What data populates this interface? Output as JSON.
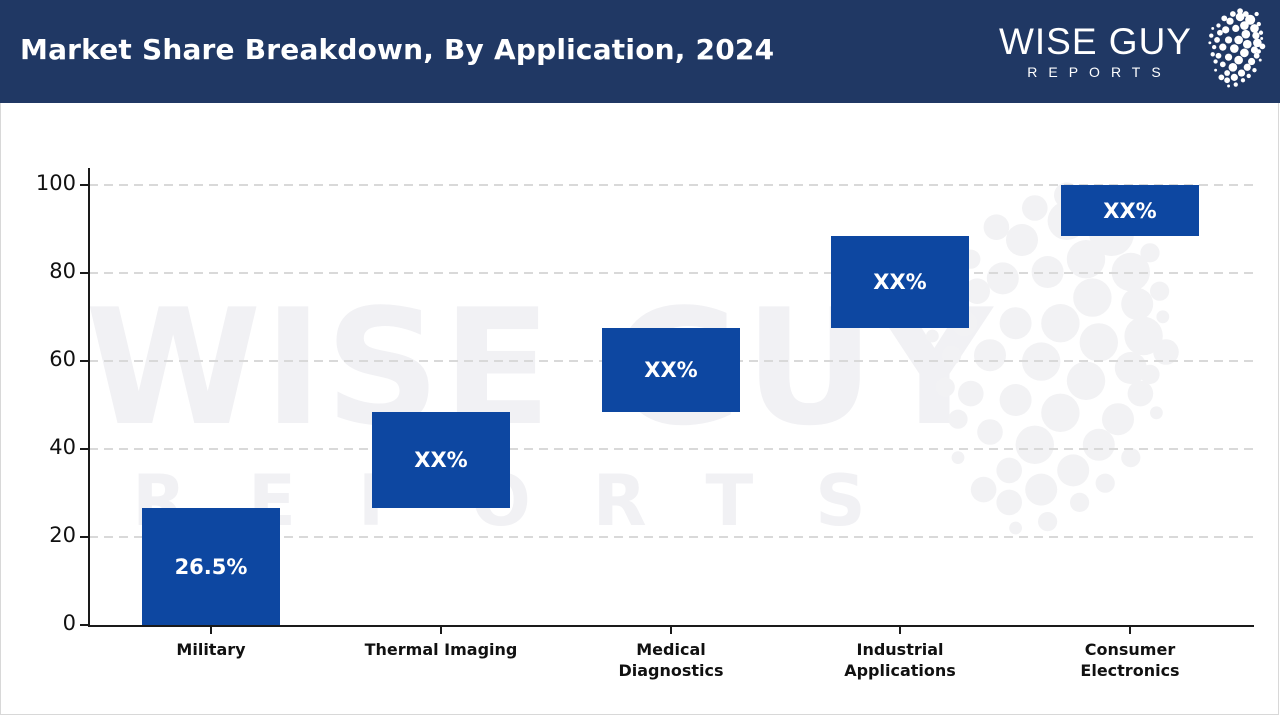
{
  "header": {
    "title": "Market Share Breakdown, By Application, 2024",
    "logo": {
      "name": "WISE GUY",
      "tagline": "REPORTS"
    }
  },
  "watermark": {
    "line1": "WISE GUY",
    "line2": "REPORTS"
  },
  "chart_data": {
    "type": "bar",
    "subtype": "waterfall",
    "title": "Market Share Breakdown, By Application, 2024",
    "categories": [
      "Military",
      "Thermal Imaging",
      "Medical\nDiagnostics",
      "Industrial\nApplications",
      "Consumer\nElectronics"
    ],
    "bars": [
      {
        "category": "Military",
        "start": 0,
        "end": 26.5,
        "label": "26.5%"
      },
      {
        "category": "Thermal Imaging",
        "start": 26.5,
        "end": 48.5,
        "label": "XX%"
      },
      {
        "category": "Medical Diagnostics",
        "start": 48.5,
        "end": 67.5,
        "label": "XX%"
      },
      {
        "category": "Industrial Applications",
        "start": 67.5,
        "end": 88.3,
        "label": "XX%"
      },
      {
        "category": "Consumer Electronics",
        "start": 88.3,
        "end": 100,
        "label": "XX%"
      }
    ],
    "yticks": [
      0,
      20,
      40,
      60,
      80,
      100
    ],
    "ylim": [
      0,
      105
    ],
    "grid": "horizontal-dashed",
    "legend": "none",
    "colors": {
      "bar": "#0d47a1",
      "header_bg": "#203864",
      "grid": "#d9d9d9",
      "axis": "#1a1a1a",
      "bar_label": "#ffffff",
      "watermark": "#f1f1f4"
    }
  }
}
